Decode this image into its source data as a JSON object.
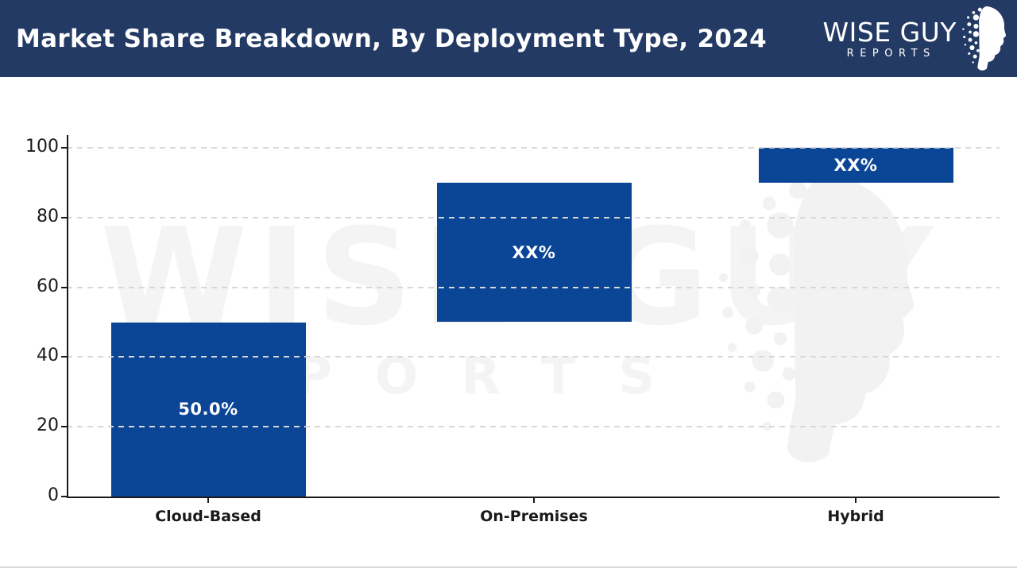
{
  "header": {
    "title": "Market Share Breakdown, By Deployment Type, 2024",
    "bg_color": "#233A64",
    "text_color": "#FFFFFF",
    "logo": {
      "brand_line1": "WISE GUY",
      "brand_line2": "REPORTS"
    }
  },
  "watermark": {
    "line1": "WISE GUY",
    "line2": "REPORTS"
  },
  "chart_data": {
    "type": "bar",
    "variant": "waterfall-segments",
    "title": "Market Share Breakdown, By Deployment Type, 2024",
    "categories": [
      "Cloud-Based",
      "On-Premises",
      "Hybrid"
    ],
    "segments": [
      {
        "category": "Cloud-Based",
        "start": 0,
        "end": 50,
        "label": "50.0%"
      },
      {
        "category": "On-Premises",
        "start": 50,
        "end": 90,
        "label": "XX%"
      },
      {
        "category": "Hybrid",
        "start": 90,
        "end": 100,
        "label": "XX%"
      }
    ],
    "bar_color": "#0B4596",
    "bar_label_color": "#FFFFFF",
    "yticks": [
      0,
      20,
      40,
      60,
      80,
      100
    ],
    "ylim": [
      0,
      104
    ],
    "xlabel": "",
    "ylabel": "",
    "grid": {
      "horizontal": true,
      "style": "dashed",
      "color": "#D8D8D8",
      "above_bars": true
    },
    "axis_color": "#1A1A1A",
    "legend": "none"
  },
  "footer": {
    "divider_color": "#D9D9D9"
  }
}
